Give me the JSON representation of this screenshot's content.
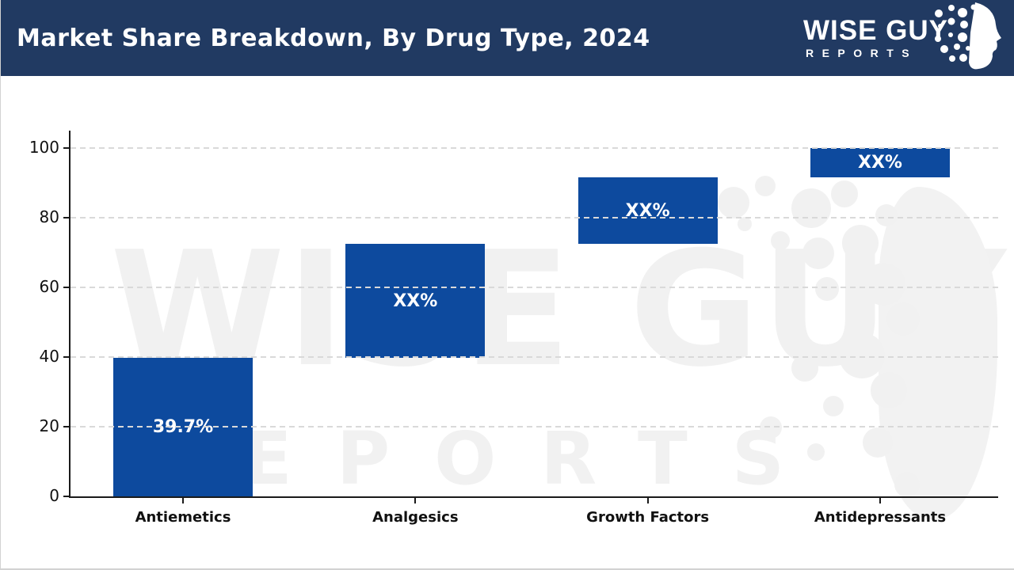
{
  "header": {
    "title": "Market Share Breakdown, By Drug Type, 2024",
    "logo": {
      "line1": "WISE GUY",
      "line2": "REPORTS"
    }
  },
  "watermark": {
    "line1": "WISE GUY",
    "line2": "REPORTS"
  },
  "colors": {
    "header_bg": "#213a62",
    "bar": "#0d4a9e",
    "bar_label": "#ffffff",
    "gridline": "#d9d9d9",
    "axis": "#1a1a1a",
    "watermark": "#f1f1f1",
    "page_border": "#d2d2d2"
  },
  "chart_data": {
    "type": "bar",
    "subtype": "waterfall",
    "title": "Market Share Breakdown, By Drug Type, 2024",
    "categories": [
      "Antiemetics",
      "Analgesics",
      "Growth Factors",
      "Antidepressants"
    ],
    "segments": [
      {
        "category": "Antiemetics",
        "start": 0,
        "end": 39.7,
        "label": "39.7%"
      },
      {
        "category": "Analgesics",
        "start": 39.7,
        "end": 72.5,
        "label": "XX%"
      },
      {
        "category": "Growth Factors",
        "start": 72.5,
        "end": 91.5,
        "label": "XX%"
      },
      {
        "category": "Antidepressants",
        "start": 91.5,
        "end": 100,
        "label": "XX%"
      }
    ],
    "ylim": [
      0,
      100
    ],
    "yticks": [
      0,
      20,
      40,
      60,
      80,
      100
    ],
    "xlabel": "",
    "ylabel": "",
    "grid": "horizontal-dashed",
    "legend": "none",
    "bar_color": "#0d4a9e"
  }
}
